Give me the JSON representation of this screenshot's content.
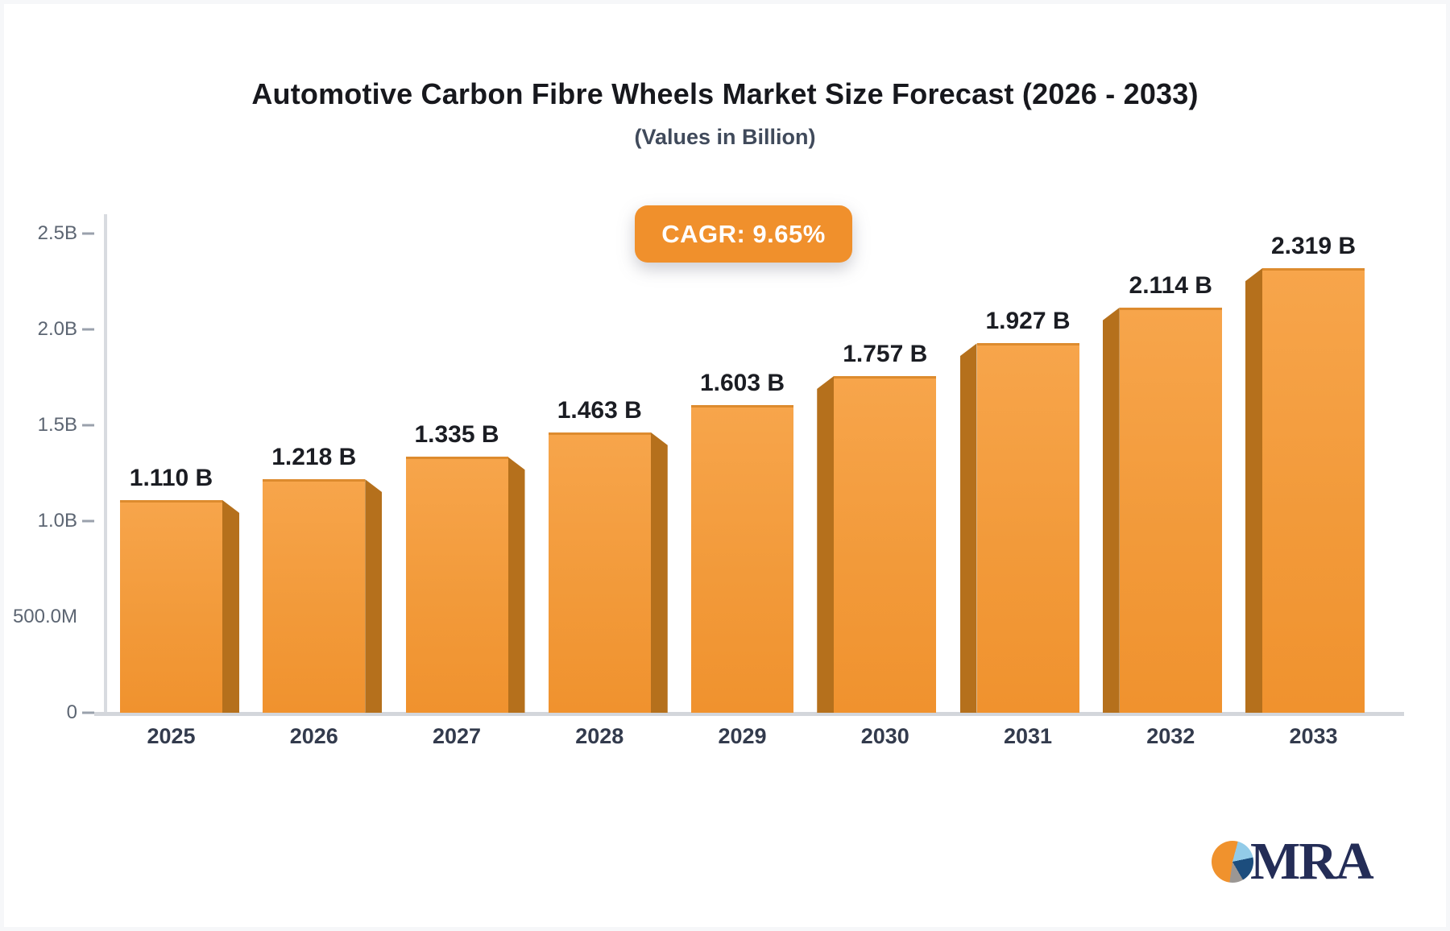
{
  "page": {
    "title": "Automotive Carbon Fibre Wheels Market Size Forecast (2026 - 2033)",
    "subtitle": "(Values in Billion)",
    "cagr_label": "CAGR: 9.65%"
  },
  "chart_data": {
    "type": "bar",
    "title": "Automotive Carbon Fibre Wheels Market Size Forecast (2026 - 2033)",
    "subtitle": "(Values in Billion)",
    "annotation": "CAGR: 9.65%",
    "categories": [
      "2025",
      "2026",
      "2027",
      "2028",
      "2029",
      "2030",
      "2031",
      "2032",
      "2033"
    ],
    "values": [
      1.11,
      1.218,
      1.335,
      1.463,
      1.603,
      1.757,
      1.927,
      2.114,
      2.319
    ],
    "value_labels": [
      "1.110 B",
      "1.218 B",
      "1.335 B",
      "1.463 B",
      "1.603 B",
      "1.757 B",
      "1.927 B",
      "2.114 B",
      "2.319 B"
    ],
    "xlabel": "",
    "ylabel": "",
    "ylim": [
      0,
      2.5
    ],
    "y_ticks": [
      {
        "label": "2.5B",
        "value": 2.5,
        "dash": true
      },
      {
        "label": "2.0B",
        "value": 2.0,
        "dash": true
      },
      {
        "label": "1.5B",
        "value": 1.5,
        "dash": true
      },
      {
        "label": "1.0B",
        "value": 1.0,
        "dash": true
      },
      {
        "label": "500.0M",
        "value": 0.5,
        "dash": false
      },
      {
        "label": "0",
        "value": 0,
        "dash": true
      }
    ],
    "grid": false,
    "legend": false
  },
  "colors": {
    "badge_bg": "#f0902c",
    "bar_face_top": "#f7a54b",
    "bar_face_bottom": "#f0922e",
    "bar_side": "#b5701c",
    "axis_line": "#d8dbe0",
    "tick_label": "#5c6572",
    "x_label": "#333b4d",
    "value_label": "#1b1d23"
  },
  "logo": {
    "text": "MRA",
    "pie_icon": "pie-chart-icon",
    "pie_orange": "#f0922d",
    "pie_blue": "#92cbe8",
    "pie_navy": "#1c4d7d",
    "pie_gray": "#9b9794",
    "text_color": "#242d57"
  }
}
